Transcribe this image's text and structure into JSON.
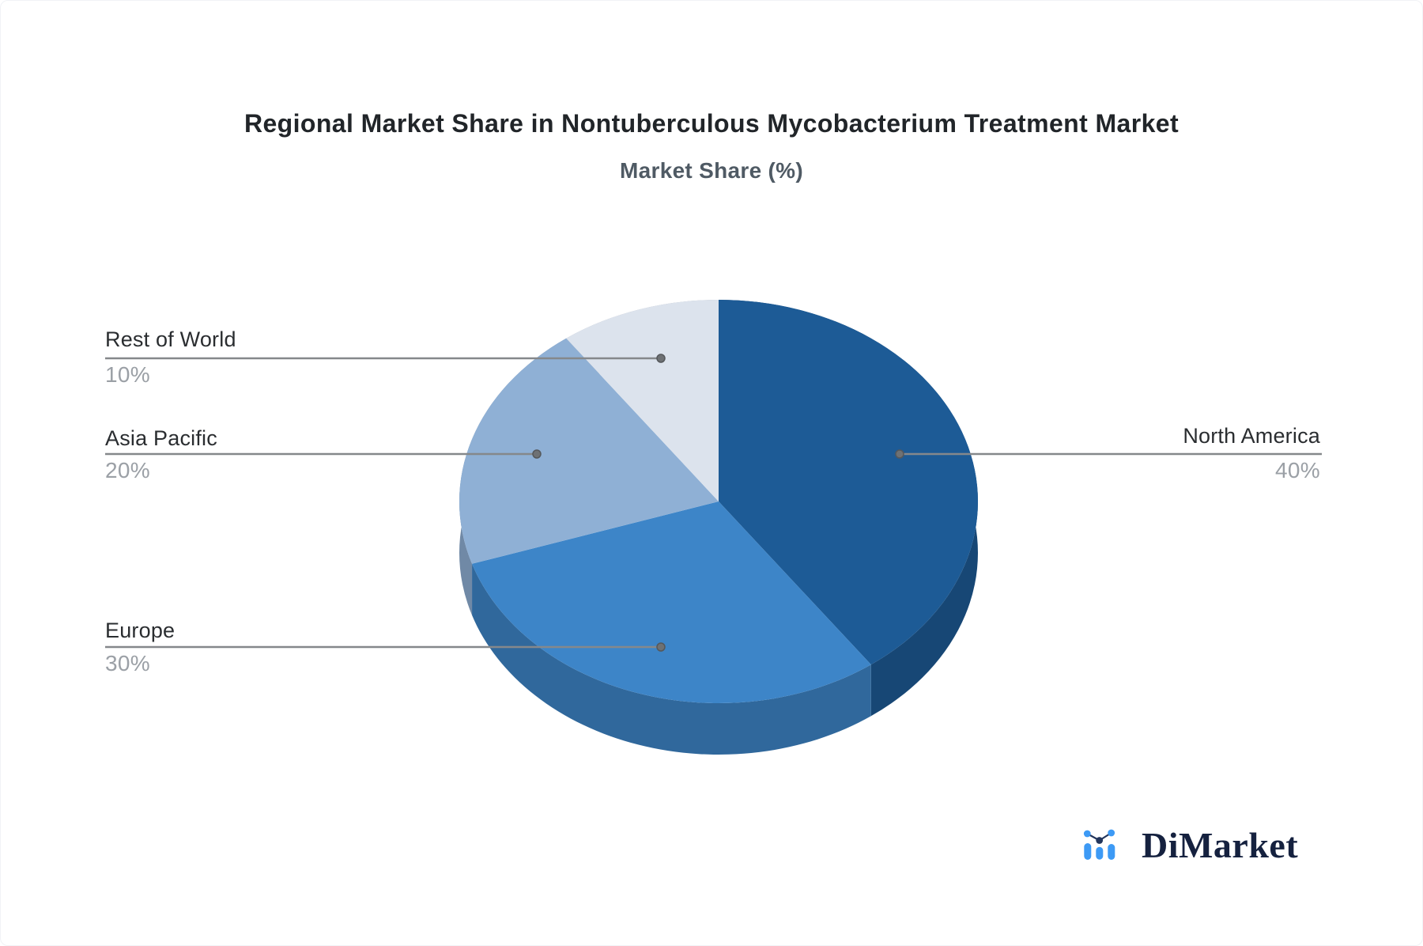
{
  "header": {
    "title": "Regional Market Share in Nontuberculous Mycobacterium Treatment Market",
    "subtitle": "Market Share (%)"
  },
  "chart_data": {
    "type": "pie",
    "title": "Regional Market Share in Nontuberculous Mycobacterium Treatment Market",
    "subtitle": "Market Share (%)",
    "unit": "%",
    "style": "3d",
    "direction": "clockwise",
    "start_angle_deg": 0,
    "legend_position": "callout-labels",
    "slices": [
      {
        "name": "North America",
        "value": 40,
        "label": "40%",
        "color": "#1D5B96",
        "side": "right"
      },
      {
        "name": "Europe",
        "value": 30,
        "label": "30%",
        "color": "#3D85C8",
        "side": "left"
      },
      {
        "name": "Asia Pacific",
        "value": 20,
        "label": "20%",
        "color": "#8FB0D5",
        "side": "left"
      },
      {
        "name": "Rest of World",
        "value": 10,
        "label": "10%",
        "color": "#DCE3ED",
        "side": "left"
      }
    ]
  },
  "logo": {
    "brand": "DiMarket",
    "icon": "bar-line-chart-icon",
    "icon_color": "#3D9AF5",
    "accent_dark": "#22355C",
    "text_color": "#15213F"
  }
}
